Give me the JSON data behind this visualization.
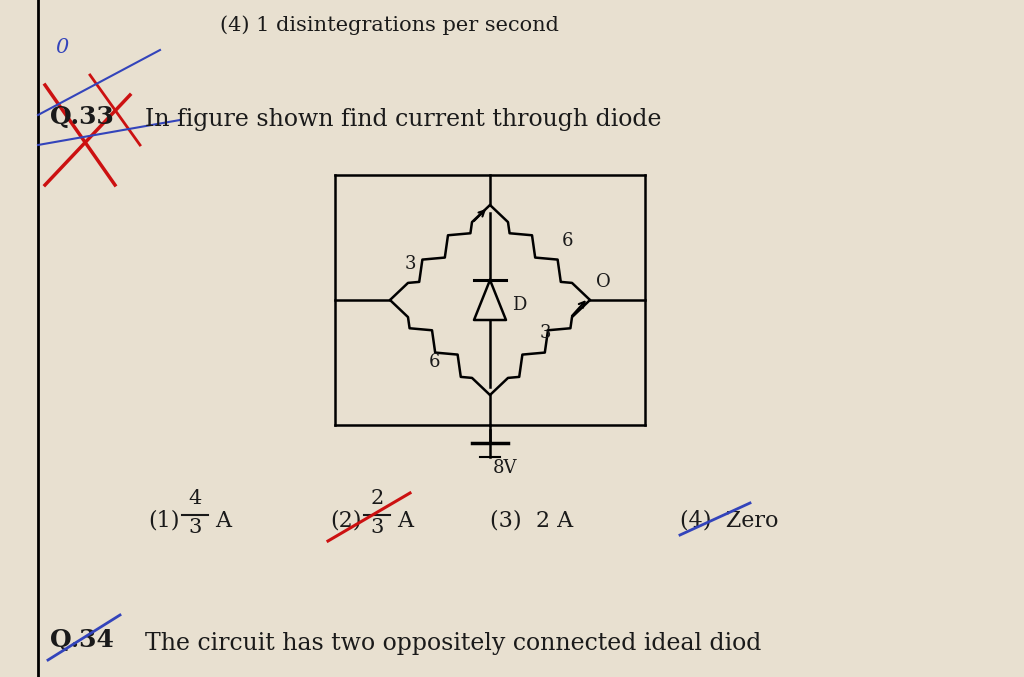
{
  "bg_color": "#d8cdb8",
  "paper_color": "#e8e0d0",
  "text_color": "#1a1a1a",
  "title_line1": "(4) 1 disintegrations per second",
  "q33_label": "Q.33",
  "q33_text": "In figure shown find current through diode",
  "diode_label": "D",
  "node_label": "O",
  "battery_label": "8V",
  "res_labels": [
    "3",
    "6",
    "6",
    "3"
  ],
  "options_text": [
    "(1)",
    "(2)",
    "(3)  2 A",
    "(4)  Zero"
  ],
  "frac1_num": "4",
  "frac1_den": "3",
  "frac2_num": "2",
  "frac2_den": "3",
  "q34_label": "Q.34",
  "q34_text": "The circuit has two oppositely connected ideal diod",
  "red_color": "#cc1111",
  "blue_color": "#3344bb",
  "o_label": "0"
}
